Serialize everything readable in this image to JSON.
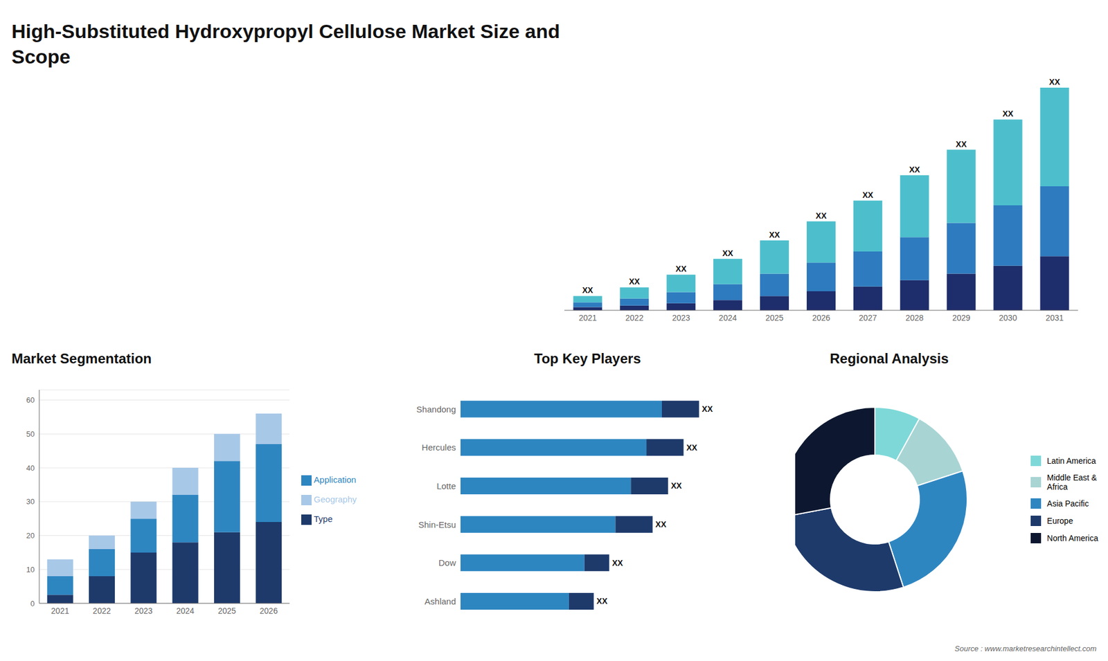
{
  "chart_data": [
    {
      "type": "bar",
      "title": "High-Substituted Hydroxypropyl Cellulose Market Size and\nScope",
      "stacked": true,
      "categories": [
        "2021",
        "2022",
        "2023",
        "2024",
        "2025",
        "2026",
        "2027",
        "2028",
        "2029",
        "2030",
        "2031"
      ],
      "series": [
        {
          "color": "#1e2d6b",
          "values": [
            1.0,
            1.5,
            2.2,
            3.2,
            4.5,
            6.0,
            7.5,
            9.5,
            11.5,
            14.0,
            17.0
          ]
        },
        {
          "color": "#2e7bbf",
          "values": [
            1.5,
            2.2,
            3.5,
            5.0,
            7.0,
            9.0,
            11.0,
            13.5,
            16.0,
            19.0,
            22.0
          ]
        },
        {
          "color": "#4dbfcc",
          "values": [
            2.0,
            3.5,
            5.5,
            8.0,
            10.5,
            13.0,
            16.0,
            19.5,
            23.0,
            27.0,
            31.0
          ]
        }
      ],
      "annotations": [
        "XX",
        "XX",
        "XX",
        "XX",
        "XX",
        "XX",
        "XX",
        "XX",
        "XX",
        "XX",
        "XX"
      ],
      "ylim": [
        0,
        78
      ],
      "tick_labels": "x",
      "grid": false
    },
    {
      "type": "bar",
      "title": "Market Segmentation",
      "stacked": true,
      "categories": [
        "2021",
        "2022",
        "2023",
        "2024",
        "2025",
        "2026"
      ],
      "series": [
        {
          "name": "Type",
          "color": "#1e3a6b",
          "values": [
            2.5,
            8.0,
            15.0,
            18.0,
            21.0,
            24.0
          ]
        },
        {
          "name": "Application",
          "color": "#2e86c1",
          "values": [
            5.5,
            8.0,
            10.0,
            14.0,
            21.0,
            23.0
          ]
        },
        {
          "name": "Geography",
          "color": "#a8c8e8",
          "values": [
            5.0,
            4.0,
            5.0,
            8.0,
            8.0,
            9.0
          ]
        }
      ],
      "ylim": [
        0,
        63
      ],
      "yticks": [
        0,
        10,
        20,
        30,
        40,
        50,
        60
      ],
      "grid": true,
      "legend": "right"
    },
    {
      "type": "bar",
      "title": "Top Key Players",
      "orientation": "horizontal",
      "stacked": true,
      "categories": [
        "Shandong",
        "Hercules",
        "Lotte",
        "Shin-Etsu",
        "Dow",
        "Ashland"
      ],
      "series": [
        {
          "color": "#2e86c1",
          "values": [
            6.5,
            6.0,
            5.5,
            5.0,
            4.0,
            3.5
          ]
        },
        {
          "color": "#1e3a6b",
          "values": [
            1.2,
            1.2,
            1.2,
            1.2,
            0.8,
            0.8
          ]
        }
      ],
      "annotations": [
        "XX",
        "XX",
        "XX",
        "XX",
        "XX",
        "XX"
      ],
      "xlim": [
        0,
        9.5
      ],
      "tick_labels": "y",
      "grid": false
    },
    {
      "type": "pie",
      "title": "Regional Analysis",
      "categories": [
        "Latin America",
        "Middle East &\nAfrica",
        "Asia Pacific",
        "Europe",
        "North America"
      ],
      "values": [
        8,
        12,
        25,
        27,
        28
      ],
      "colors": [
        "#7ed8d8",
        "#a8d4d4",
        "#2e86c1",
        "#1e3a6b",
        "#0d1830"
      ],
      "legend": "right",
      "annotations": [
        "Source : www.marketresearchintellect.com"
      ]
    }
  ]
}
